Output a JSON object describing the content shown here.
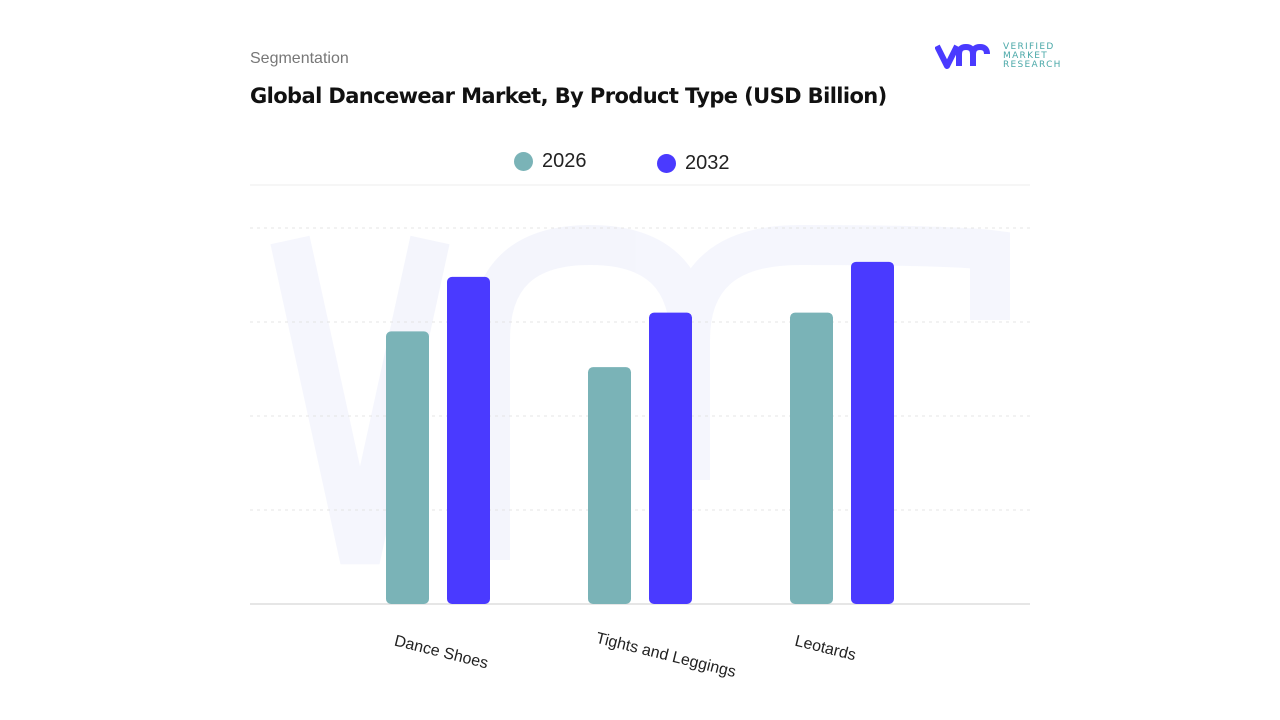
{
  "header": {
    "segment_label": "Segmentation",
    "title": "Global Dancewear Market, By Product Type (USD Billion)",
    "logo": {
      "mark": "vmr",
      "lines": [
        "VERIFIED",
        "MARKET",
        "RESEARCH"
      ]
    }
  },
  "chart_data": {
    "type": "bar",
    "title": "Global Dancewear Market, By Product Type (USD Billion)",
    "categories": [
      "Dance Shoes",
      "Tights and Leggings",
      "Leotards"
    ],
    "series": [
      {
        "name": "2026",
        "values": [
          2.9,
          2.52,
          3.1
        ],
        "color": "#7ab3b7"
      },
      {
        "name": "2032",
        "values": [
          3.48,
          3.1,
          3.64
        ],
        "color": "#4a3aff"
      }
    ],
    "xlabel": "",
    "ylabel": "",
    "ylim": [
      0,
      4
    ],
    "grid": true,
    "legend": "top-center"
  }
}
